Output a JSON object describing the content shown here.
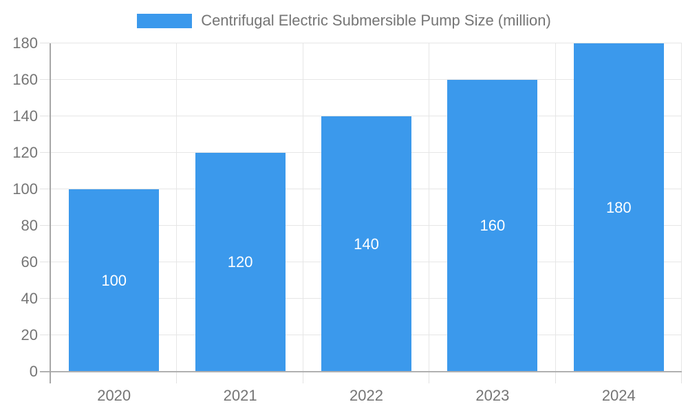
{
  "chart_data": {
    "type": "bar",
    "title": "",
    "legend": "Centrifugal Electric Submersible Pump Size (million)",
    "legend_position": "top-center",
    "categories": [
      "2020",
      "2021",
      "2022",
      "2023",
      "2024"
    ],
    "series": [
      {
        "name": "Centrifugal Electric Submersible Pump Size (million)",
        "values": [
          100,
          120,
          140,
          160,
          180
        ]
      }
    ],
    "data_labels": [
      "100",
      "120",
      "140",
      "160",
      "180"
    ],
    "xlabel": "",
    "ylabel": "",
    "ylim": [
      0,
      180
    ],
    "ytick_step": 20,
    "yticks": [
      0,
      20,
      40,
      60,
      80,
      100,
      120,
      140,
      160,
      180
    ],
    "grid": true,
    "colors": {
      "bar": "#3B99EC",
      "grid": "#e6e6e6",
      "axis_y": "#a6a6a6",
      "axis_baseline": "#b0b0b0",
      "tick": "#e2e2e2",
      "label_text": "#757575",
      "data_label": "#ffffff",
      "background": "#ffffff"
    }
  }
}
